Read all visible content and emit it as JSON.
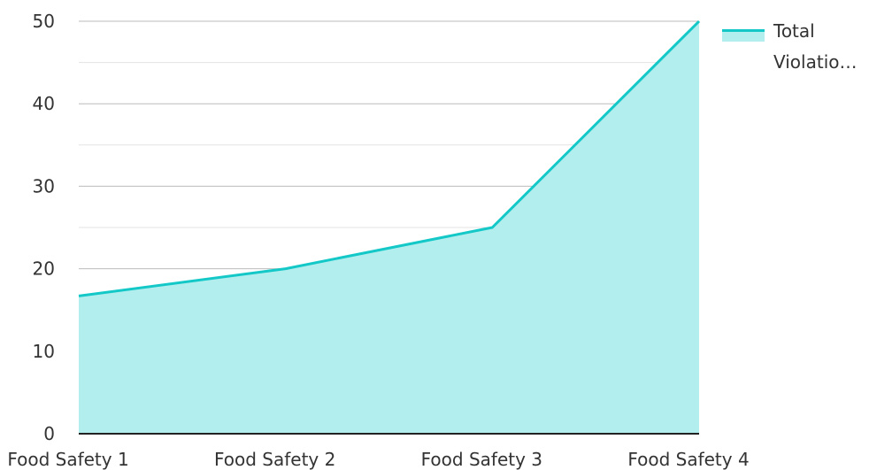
{
  "chart_data": {
    "type": "area",
    "categories": [
      "Food Safety 1",
      "Food Safety 2",
      "Food Safety 3",
      "Food Safety 4"
    ],
    "series": [
      {
        "name": "Total Violatio…",
        "values": [
          16.7,
          20,
          25,
          50
        ]
      }
    ],
    "ylim": [
      0,
      50
    ],
    "yticks": [
      "0",
      "10",
      "20",
      "30",
      "40",
      "50"
    ],
    "grid": true,
    "legend_position": "top-right",
    "colors": {
      "line": "#14c8c8",
      "fill": "#b2eeee",
      "grid_major": "#bbbbbb",
      "grid_minor": "#e3e3e3",
      "axis": "#222222",
      "text": "#333333"
    }
  },
  "legend": {
    "line1": "Total",
    "line2": "Violatio…"
  }
}
